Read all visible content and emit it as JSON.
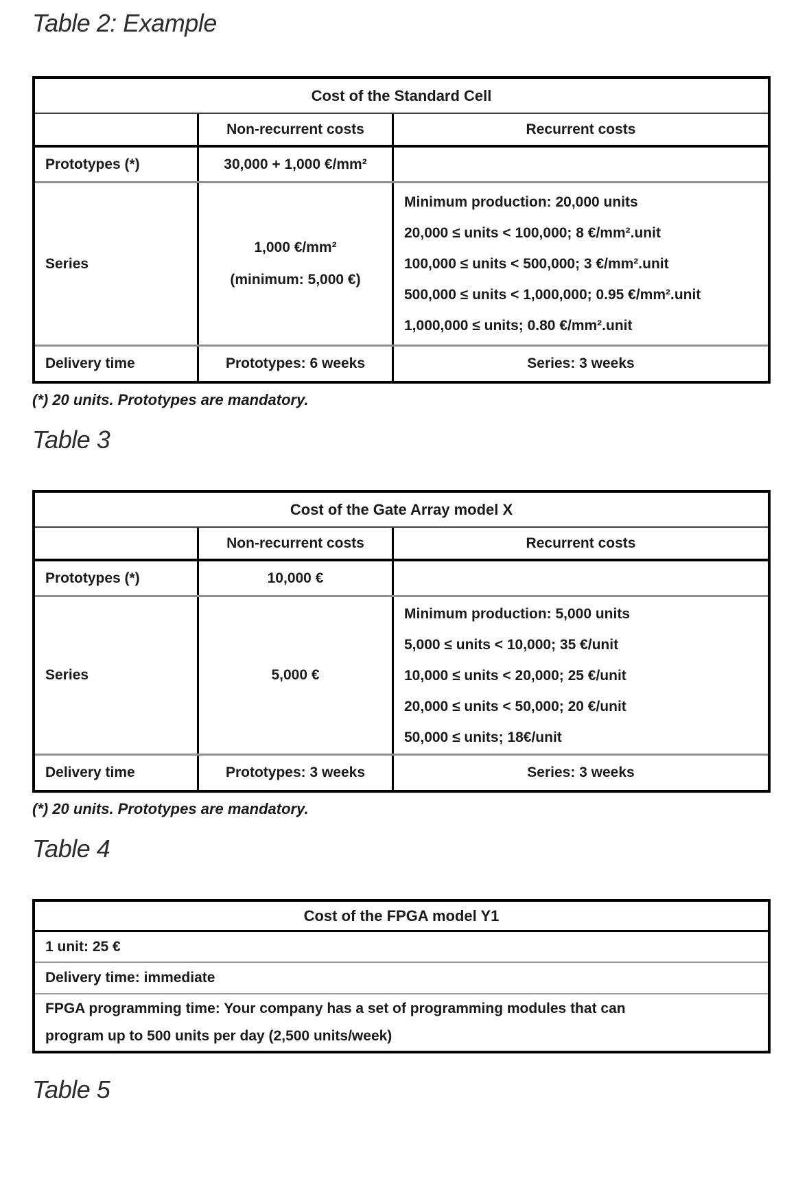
{
  "headings": {
    "table2": "Table 2: Example",
    "table3": "Table 3",
    "table4": "Table 4",
    "table5": "Table 5"
  },
  "standard_cell": {
    "title": "Cost of the Standard Cell",
    "columns": {
      "non_recurrent": "Non-recurrent costs",
      "recurrent": "Recurrent costs"
    },
    "prototypes": {
      "label": "Prototypes (*)",
      "non_recurrent": "30,000 + 1,000 €/mm²"
    },
    "series": {
      "label": "Series",
      "non_recurrent_line1": "1,000 €/mm²",
      "non_recurrent_line2": "(minimum: 5,000 €)",
      "recurrent": [
        "Minimum production: 20,000 units",
        "20,000 ≤ units < 100,000; 8 €/mm².unit",
        "100,000 ≤ units < 500,000; 3 €/mm².unit",
        "500,000 ≤ units < 1,000,000; 0.95 €/mm².unit",
        "1,000,000 ≤ units; 0.80 €/mm².unit"
      ]
    },
    "delivery": {
      "label": "Delivery time",
      "prototypes": "Prototypes: 6 weeks",
      "series": "Series: 3 weeks"
    },
    "footnote": "(*) 20 units. Prototypes are mandatory."
  },
  "gate_array": {
    "title": "Cost of the Gate Array model X",
    "columns": {
      "non_recurrent": "Non-recurrent costs",
      "recurrent": "Recurrent costs"
    },
    "prototypes": {
      "label": "Prototypes (*)",
      "non_recurrent": "10,000 €"
    },
    "series": {
      "label": "Series",
      "non_recurrent": "5,000 €",
      "recurrent": [
        "Minimum production: 5,000 units",
        "5,000 ≤ units < 10,000; 35 €/unit",
        "10,000 ≤ units < 20,000; 25 €/unit",
        "20,000 ≤ units < 50,000; 20 €/unit",
        "50,000 ≤ units; 18€/unit"
      ]
    },
    "delivery": {
      "label": "Delivery time",
      "prototypes": "Prototypes: 3 weeks",
      "series": "Series: 3 weeks"
    },
    "footnote": "(*) 20 units. Prototypes are mandatory."
  },
  "fpga": {
    "title": "Cost of the FPGA model Y1",
    "rows": [
      "1 unit: 25 €",
      "Delivery time: immediate",
      "FPGA programming time: Your company has a set of programming modules that can program up to 500 units per day (2,500 units/week)"
    ]
  }
}
